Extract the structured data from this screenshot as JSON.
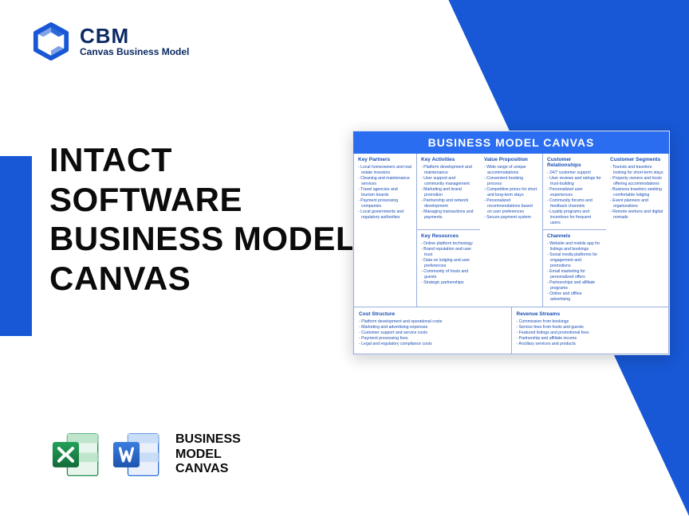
{
  "brand": {
    "abbr": "CBM",
    "full": "Canvas Business Model"
  },
  "title": {
    "l1": "INTACT",
    "l2": "SOFTWARE",
    "l3": "BUSINESS MODEL",
    "l4": "CANVAS"
  },
  "iconrow_label": {
    "l1": "BUSINESS",
    "l2": "MODEL",
    "l3": "CANVAS"
  },
  "colors": {
    "accent": "#1858d6",
    "excel": "#1f8f4e",
    "excel_dark": "#156b3a",
    "word": "#2b6fd8",
    "word_dark": "#1d55ae"
  },
  "canvas": {
    "title": "BUSINESS MODEL CANVAS",
    "partners": {
      "h": "Key Partners",
      "items": [
        "Local homeowners and real estate investors",
        "Cleaning and maintenance services",
        "Travel agencies and tourism boards",
        "Payment processing companies",
        "Local governments and regulatory authorities"
      ]
    },
    "activities": {
      "h": "Key Activities",
      "items": [
        "Platform development and maintenance",
        "User support and community management",
        "Marketing and brand promotion",
        "Partnership and network development",
        "Managing transactions and payments"
      ]
    },
    "resources": {
      "h": "Key Resources",
      "items": [
        "Online platform technology",
        "Brand reputation and user trust",
        "Data on lodging and user preferences",
        "Community of hosts and guests",
        "Strategic partnerships"
      ]
    },
    "value": {
      "h": "Value Proposition",
      "items": [
        "Wide range of unique accommodations",
        "Convenient booking process",
        "Competitive prices for short and long-term stays",
        "Personalized recommendations based on user preferences",
        "Secure payment system"
      ]
    },
    "relationships": {
      "h": "Customer Relationships",
      "items": [
        "24/7 customer support",
        "User reviews and ratings for trust-building",
        "Personalized user experiences",
        "Community forums and feedback channels",
        "Loyalty programs and incentives for frequent users"
      ]
    },
    "channels": {
      "h": "Channels",
      "items": [
        "Website and mobile app for listings and bookings",
        "Social media platforms for engagement and promotions",
        "Email marketing for personalized offers",
        "Partnerships and affiliate programs",
        "Online and offline advertising"
      ]
    },
    "segments": {
      "h": "Customer Segments",
      "items": [
        "Tourists and travelers looking for short-term stays",
        "Property owners and hosts offering accommodations",
        "Business travelers seeking comfortable lodging",
        "Event planners and organizations",
        "Remote workers and digital nomads"
      ]
    },
    "cost": {
      "h": "Cost Structure",
      "items": [
        "Platform development and operational costs",
        "Marketing and advertising expenses",
        "Customer support and service costs",
        "Payment processing fees",
        "Legal and regulatory compliance costs"
      ]
    },
    "revenue": {
      "h": "Revenue Streams",
      "items": [
        "Commission from bookings",
        "Service fees from hosts and guests",
        "Featured listings and promotional fees",
        "Partnership and affiliate income",
        "Ancillary services and products"
      ]
    }
  }
}
